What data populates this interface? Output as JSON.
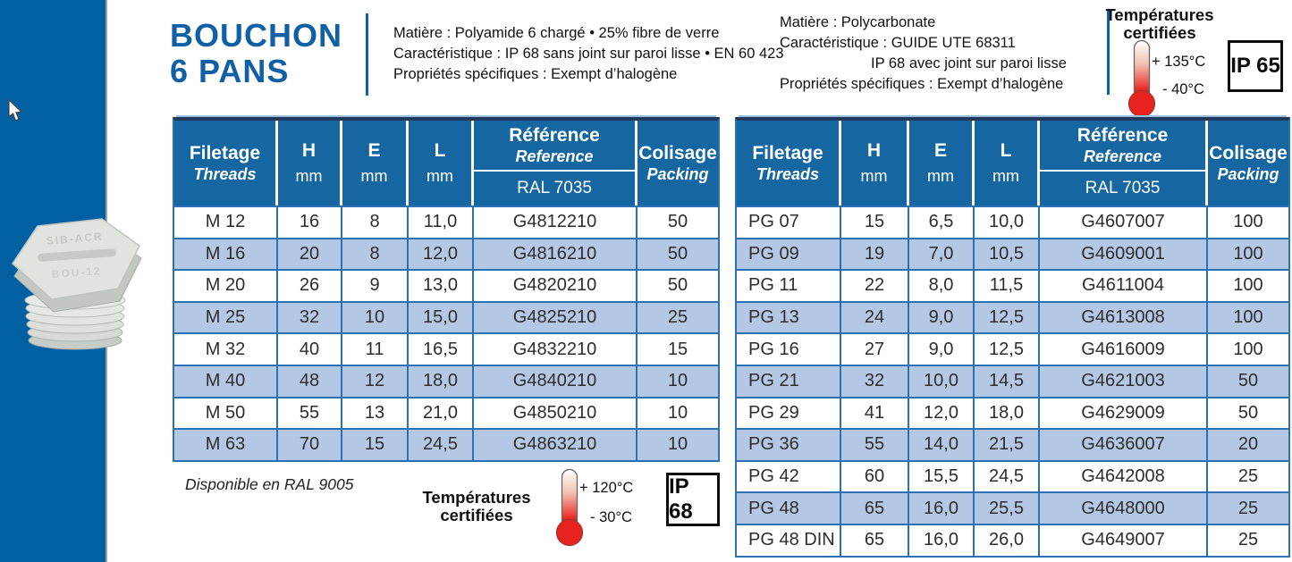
{
  "product_header": {
    "title_line1": "BOUCHON",
    "title_line2": "6 PANS"
  },
  "specs_left": {
    "line1": "Matière : Polyamide 6 chargé • 25% fibre de verre",
    "line2": "Caractéristique : IP 68 sans joint sur paroi lisse • EN 60 423",
    "line3": "Propriétés spécifiques : Exempt d’halogène"
  },
  "specs_right": {
    "line1": "Matière : Polycarbonate",
    "line2": "Caractéristique : GUIDE UTE 68311",
    "line3": "IP 68 avec joint sur paroi lisse",
    "line4": "Propriétés spécifiques : Exempt d’halogène"
  },
  "temp_top": {
    "title_line1": "Températures",
    "title_line2": "certifiées",
    "max": "+ 135°C",
    "min": "- 40°C",
    "ip_rating": "IP 65"
  },
  "temp_bottom": {
    "title_line1": "Températures",
    "title_line2": "certifiées",
    "max": "+ 120°C",
    "min": "- 30°C",
    "ip_rating": "IP 68"
  },
  "ral_note": "Disponible en RAL 9005",
  "table_header": {
    "threads_fr": "Filetage",
    "threads_en": "Threads",
    "h": "H",
    "e": "E",
    "l": "L",
    "unit": "mm",
    "ref_fr": "Référence",
    "ref_en": "Reference",
    "ref_ral": "RAL 7035",
    "packing_fr": "Colisage",
    "packing_en": "Packing"
  },
  "tables": [
    {
      "id": "metric-threads",
      "rows": [
        [
          "M 12",
          "16",
          "8",
          "11,0",
          "G4812210",
          "50"
        ],
        [
          "M 16",
          "20",
          "8",
          "12,0",
          "G4816210",
          "50"
        ],
        [
          "M 20",
          "26",
          "9",
          "13,0",
          "G4820210",
          "50"
        ],
        [
          "M 25",
          "32",
          "10",
          "15,0",
          "G4825210",
          "25"
        ],
        [
          "M 32",
          "40",
          "11",
          "16,5",
          "G4832210",
          "15"
        ],
        [
          "M 40",
          "48",
          "12",
          "18,0",
          "G4840210",
          "10"
        ],
        [
          "M 50",
          "55",
          "13",
          "21,0",
          "G4850210",
          "10"
        ],
        [
          "M 63",
          "70",
          "15",
          "24,5",
          "G4863210",
          "10"
        ]
      ]
    },
    {
      "id": "pg-threads",
      "rows": [
        [
          "PG 07",
          "15",
          "6,5",
          "10,0",
          "G4607007",
          "100"
        ],
        [
          "PG 09",
          "19",
          "7,0",
          "10,5",
          "G4609001",
          "100"
        ],
        [
          "PG 11",
          "22",
          "8,0",
          "11,5",
          "G4611004",
          "100"
        ],
        [
          "PG 13",
          "24",
          "9,0",
          "12,5",
          "G4613008",
          "100"
        ],
        [
          "PG 16",
          "27",
          "9,0",
          "12,5",
          "G4616009",
          "100"
        ],
        [
          "PG 21",
          "32",
          "10,0",
          "14,5",
          "G4621003",
          "50"
        ],
        [
          "PG 29",
          "41",
          "12,0",
          "18,0",
          "G4629009",
          "50"
        ],
        [
          "PG 36",
          "55",
          "14,0",
          "21,5",
          "G4636007",
          "20"
        ],
        [
          "PG 42",
          "60",
          "15,5",
          "24,5",
          "G4642008",
          "25"
        ],
        [
          "PG 48",
          "65",
          "16,0",
          "25,5",
          "G4648000",
          "25"
        ],
        [
          "PG 48 DIN",
          "65",
          "16,0",
          "26,0",
          "G4649007",
          "25"
        ]
      ]
    }
  ],
  "product_image": {
    "embossed_line1": "SIB-ACR",
    "embossed_line2": "BOU-12"
  },
  "colors": {
    "sidebar_blue": "#0060a2",
    "brand_blue": "#1060a5",
    "header_blue": "#1667a1",
    "row_alt_blue": "#b4c7e4",
    "grid_blue": "#2a72b4",
    "table_top_border": "#20395c",
    "thermo_red": "#e8231f",
    "text_dark": "#1a1a1a"
  }
}
